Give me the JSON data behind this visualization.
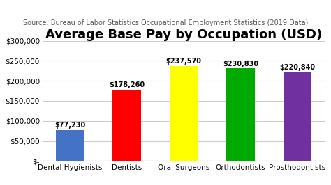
{
  "title": "Average Base Pay by Occupation (USD)",
  "subtitle": "Source: Bureau of Labor Statistics Occupational Employment Statistics (2019 Data)",
  "categories": [
    "Dental Hygienists",
    "Dentists",
    "Oral Surgeons",
    "Orthodontists",
    "Prosthodontists"
  ],
  "values": [
    77230,
    178260,
    237570,
    230830,
    220840
  ],
  "bar_colors": [
    "#4472C4",
    "#FF0000",
    "#FFFF00",
    "#00AA00",
    "#7030A0"
  ],
  "labels": [
    "$77,230",
    "$178,260",
    "$237,570",
    "$230,830",
    "$220,840"
  ],
  "ylim": [
    0,
    300000
  ],
  "yticks": [
    0,
    50000,
    100000,
    150000,
    200000,
    250000,
    300000
  ],
  "ytick_labels": [
    "$-",
    "$50,000",
    "$100,000",
    "$150,000",
    "$200,000",
    "$250,000",
    "$300,000"
  ],
  "background_color": "#FFFFFF",
  "grid_color": "#CCCCCC",
  "title_fontsize": 13,
  "subtitle_fontsize": 7,
  "label_fontsize": 7,
  "xtick_fontsize": 7.5,
  "ytick_fontsize": 7.5,
  "bar_width": 0.5
}
